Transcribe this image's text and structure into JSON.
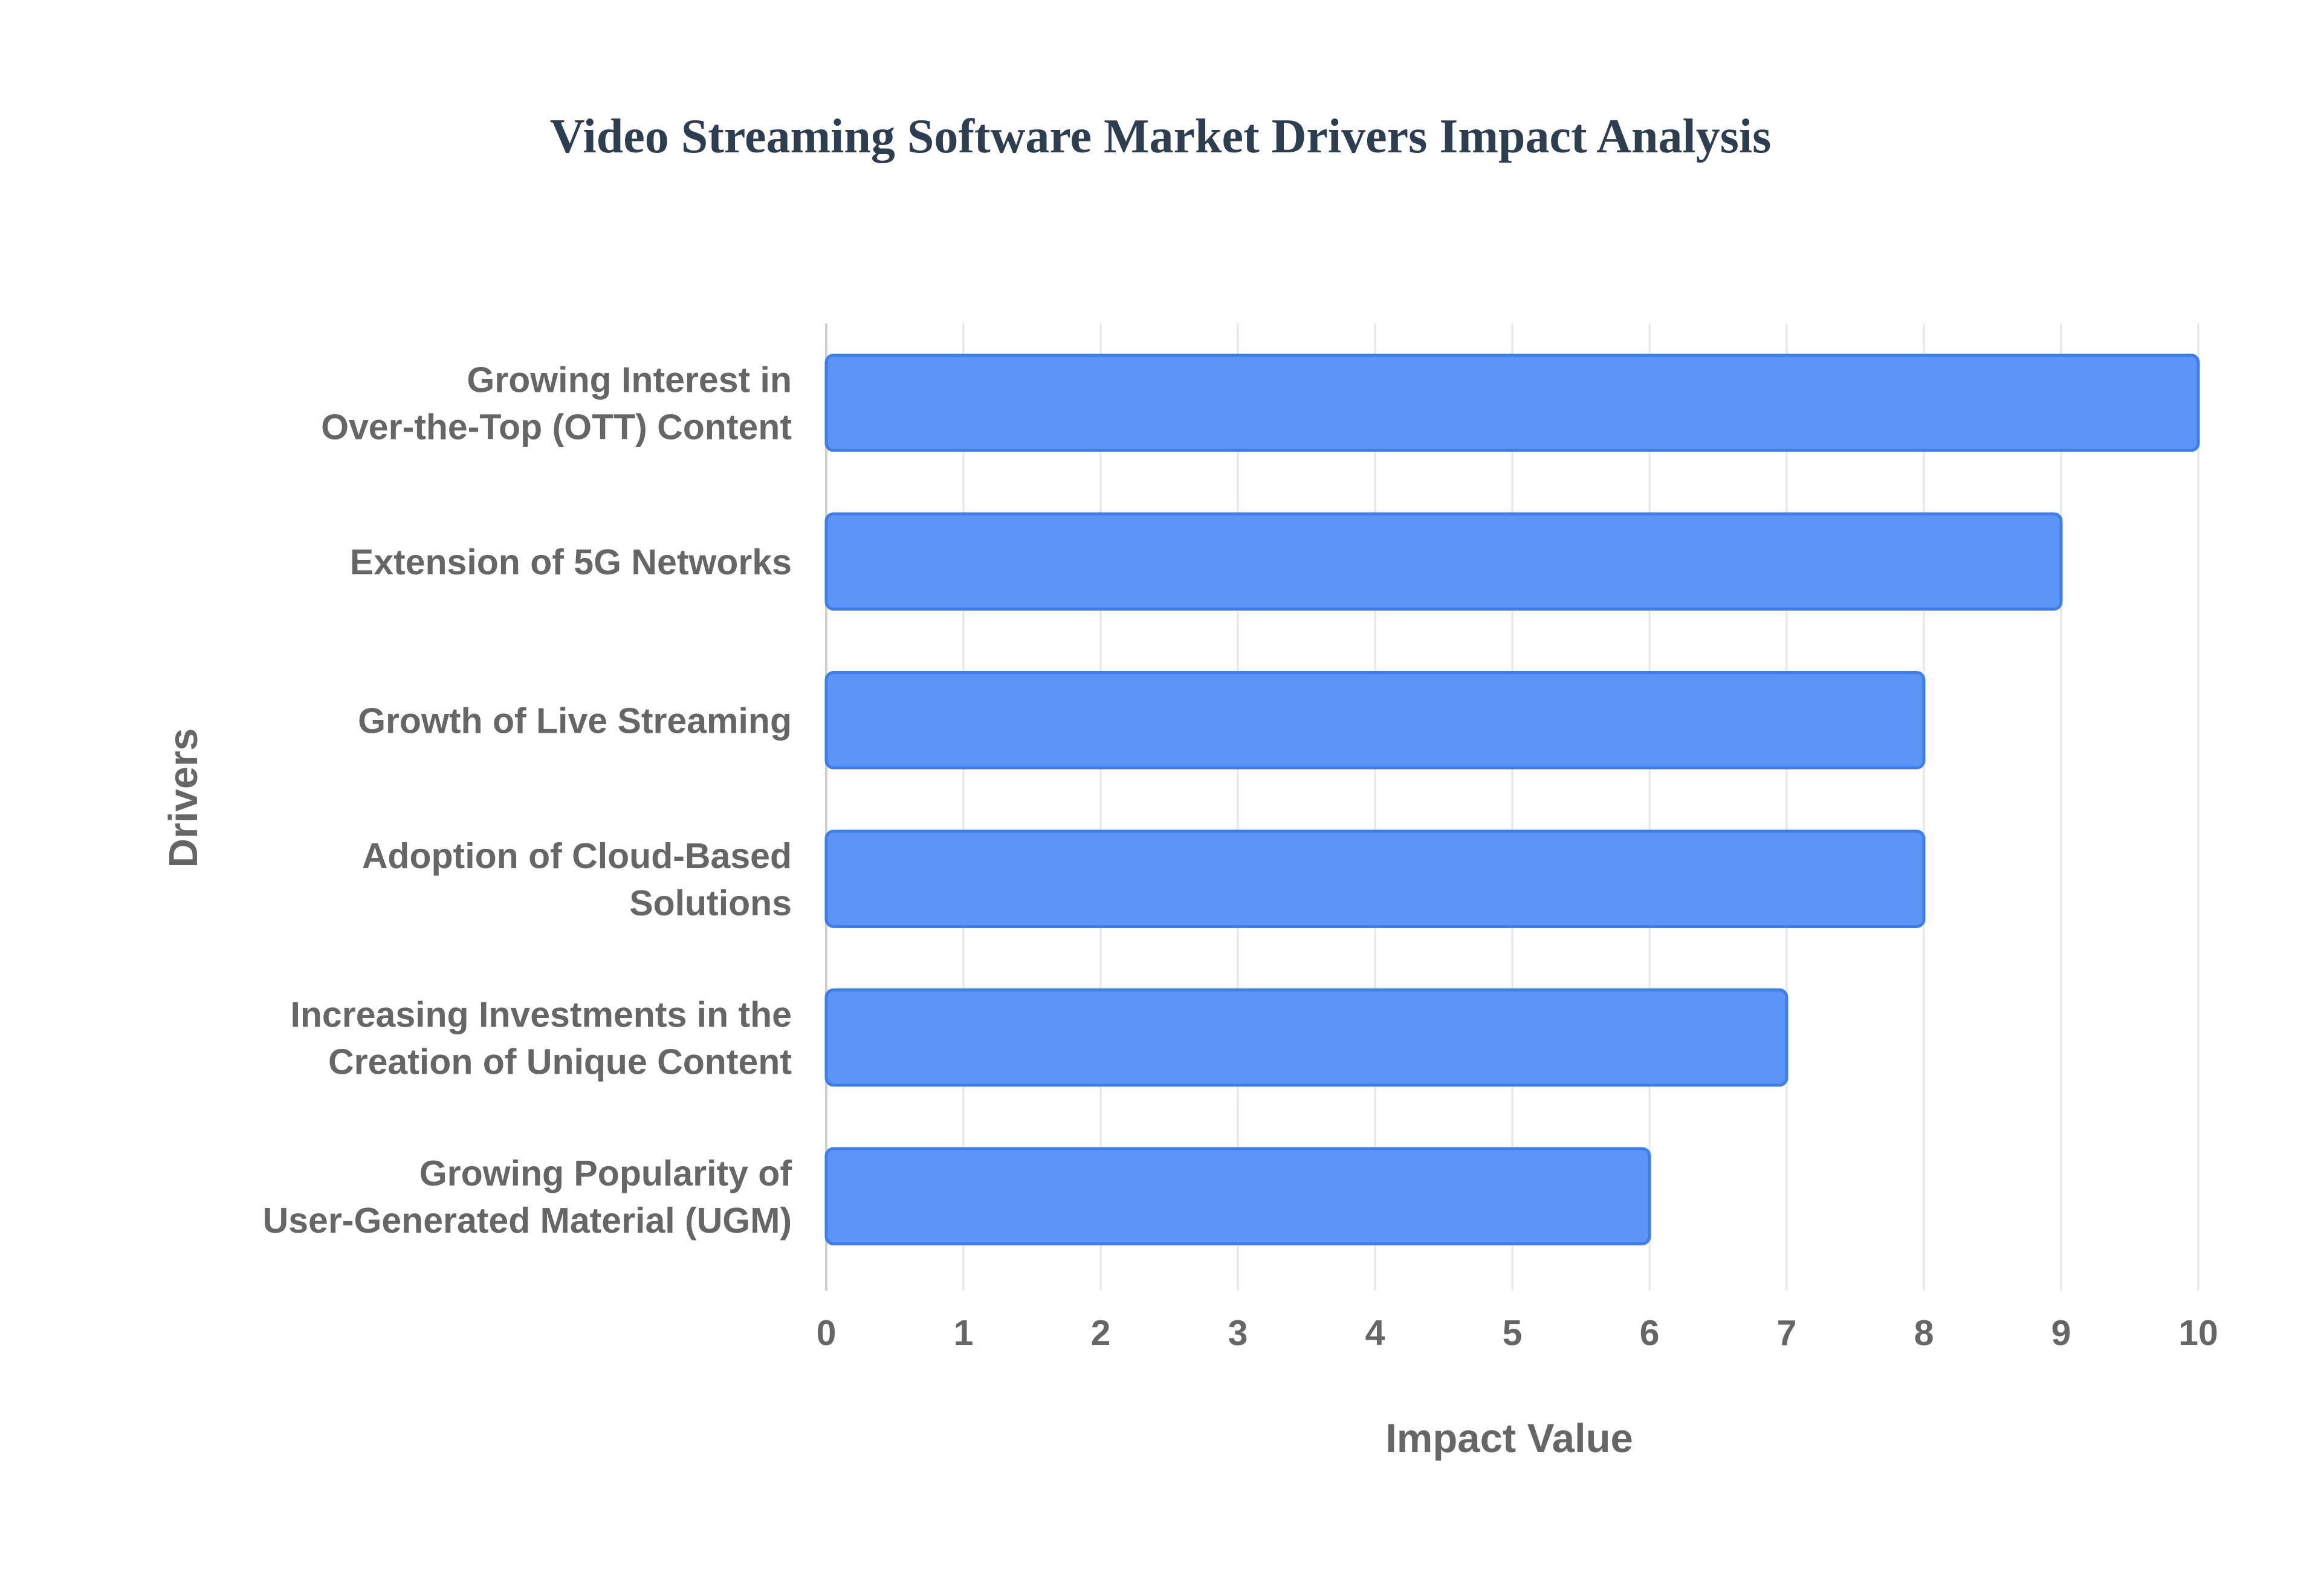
{
  "chart_data": {
    "type": "bar",
    "orientation": "horizontal",
    "title": "Video Streaming Software Market Drivers Impact Analysis",
    "xlabel": "Impact Value",
    "ylabel": "Drivers",
    "categories": [
      [
        "Growing Interest in",
        "Over-the-Top (OTT) Content"
      ],
      [
        "Extension of 5G Networks"
      ],
      [
        "Growth of Live Streaming"
      ],
      [
        "Adoption of Cloud-Based",
        "Solutions"
      ],
      [
        "Increasing Investments in the",
        "Creation of Unique Content"
      ],
      [
        "Growing Popularity of",
        "User-Generated Material (UGM)"
      ]
    ],
    "values": [
      10,
      9,
      8,
      8,
      7,
      6
    ],
    "xlim": [
      0,
      10
    ],
    "xticks": [
      0,
      1,
      2,
      3,
      4,
      5,
      6,
      7,
      8,
      9,
      10
    ],
    "grid": true,
    "legend": "none",
    "colors": {
      "bar_fill": "#5c95f5",
      "bar_stroke": "#3f7ee8",
      "grid": "#e6e6e6",
      "axis": "#cfcfcf",
      "title": "#2c3e50",
      "text": "#666666"
    }
  }
}
